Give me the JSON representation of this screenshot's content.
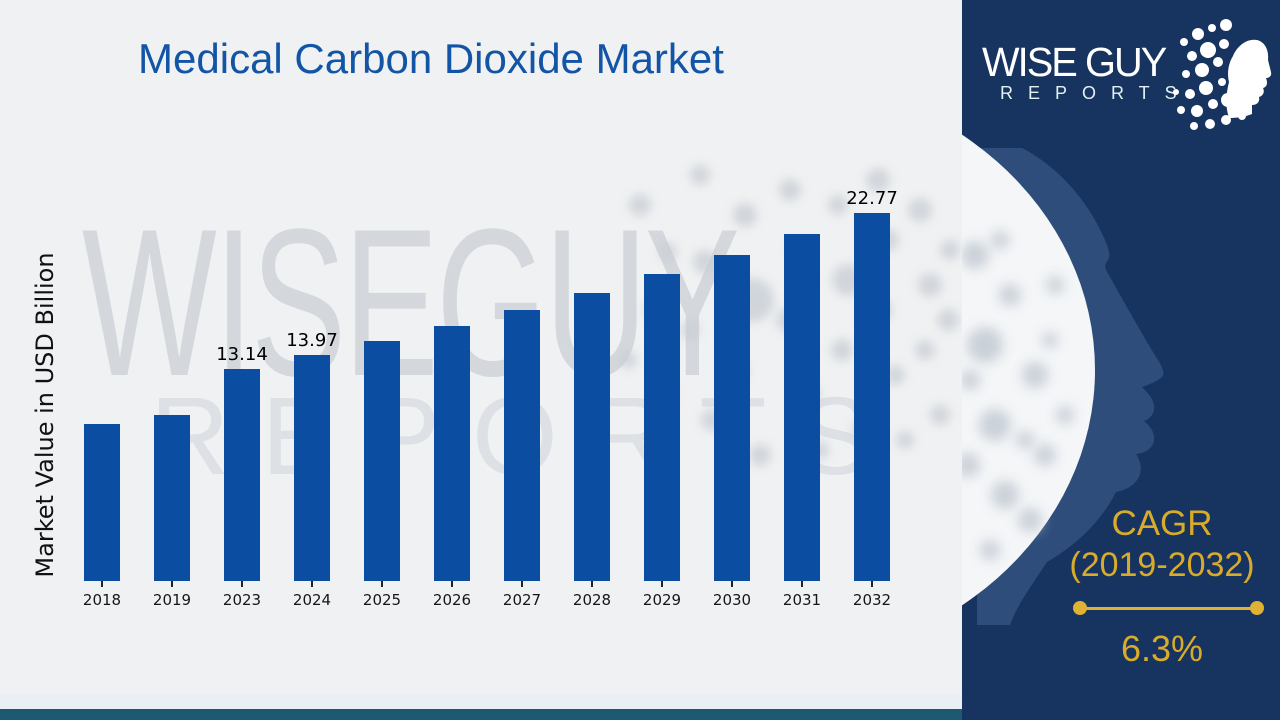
{
  "page_title": "Medical Carbon Dioxide Market",
  "watermark": {
    "line1": "WISEGUY",
    "line2": "REPORTS"
  },
  "brand": {
    "wordmark": "WISE GUY",
    "wordmark_sub": "REPORTS",
    "face_icon": "head-profile-dots-icon"
  },
  "cagr": {
    "label": "CAGR",
    "range": "(2019-2032)",
    "value": "6.3%"
  },
  "chart_data": {
    "type": "bar",
    "title": "Medical Carbon Dioxide Market",
    "xlabel": "",
    "ylabel": "Market Value in USD Billion",
    "categories": [
      "2018",
      "2019",
      "2023",
      "2024",
      "2025",
      "2026",
      "2027",
      "2028",
      "2029",
      "2030",
      "2031",
      "2032"
    ],
    "values": [
      9.68,
      10.29,
      13.14,
      13.97,
      14.85,
      15.79,
      16.78,
      17.84,
      18.96,
      20.16,
      21.43,
      22.77
    ],
    "data_labels": [
      "",
      "",
      "13.14",
      "13.97",
      "",
      "",
      "",
      "",
      "",
      "",
      "",
      "22.77"
    ],
    "ylim": [
      0,
      25
    ],
    "grid": false,
    "legend_position": null,
    "bar_color": "#0b4da1"
  },
  "colors": {
    "background": "#f0f1f2",
    "bar": "#0b4da1",
    "title_text": "#1254a5",
    "panel_navy": "#17335f",
    "accent_gold": "#d9ab2b",
    "bottom_strip_teal": "#1d5971",
    "face_silhouette": "#2e4d7b"
  }
}
